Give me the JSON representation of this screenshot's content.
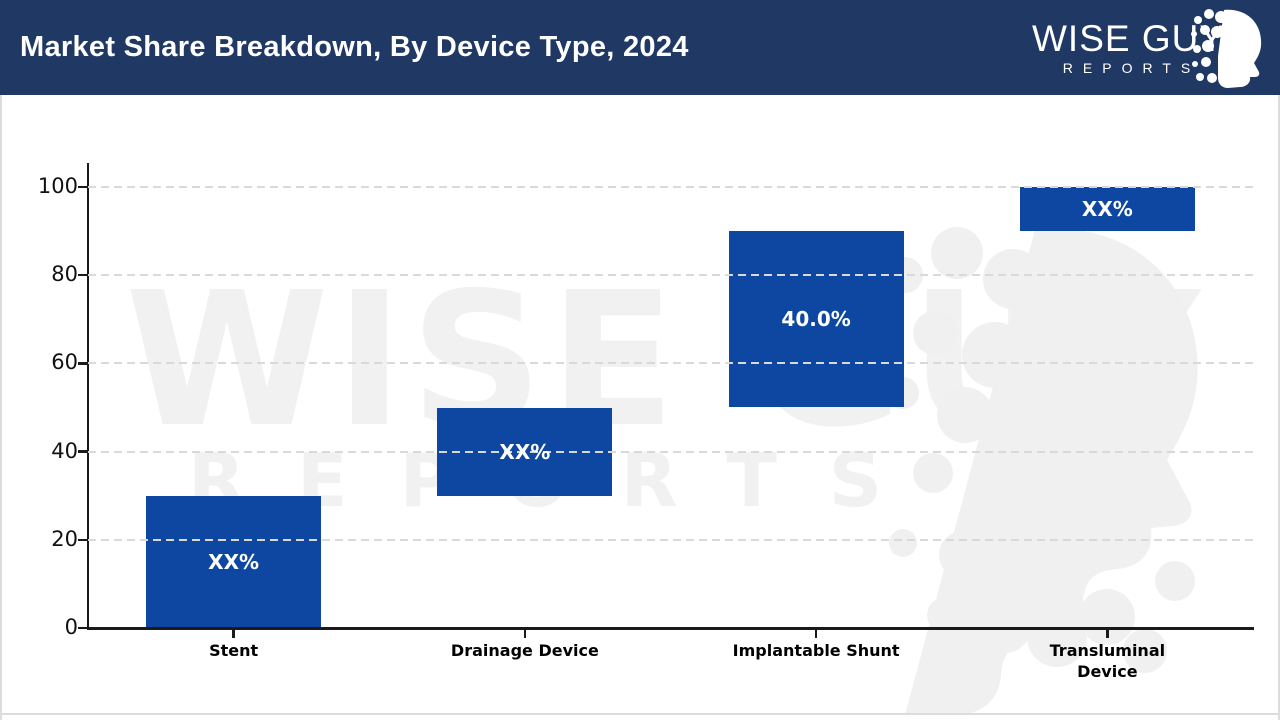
{
  "header": {
    "title": "Market Share Breakdown, By Device Type, 2024",
    "logo": {
      "line1": "WISE GUY",
      "line2": "REPORTS"
    },
    "bg_color": "#203864"
  },
  "watermark": {
    "line1": "WISE GUY",
    "line2": "REPORTS"
  },
  "colors": {
    "header_bg": "#203864",
    "bar": "#0d47a1",
    "grid": "#d9d9d9",
    "axis": "#1a1a1a",
    "bar_label": "#ffffff",
    "tick_label": "#111111",
    "watermark": "#f1f1f1"
  },
  "chart_data": {
    "type": "bar",
    "variant": "floating-segment waterfall (cumulative market share)",
    "title": "Market Share Breakdown, By Device Type, 2024",
    "categories": [
      "Stent",
      "Drainage Device",
      "Implantable Shunt",
      "Transluminal Device"
    ],
    "bars": [
      {
        "category": "Stent",
        "start": 0,
        "end": 30,
        "label": "XX%"
      },
      {
        "category": "Drainage Device",
        "start": 30,
        "end": 50,
        "label": "XX%"
      },
      {
        "category": "Implantable Shunt",
        "start": 50,
        "end": 90,
        "label": "40.0%"
      },
      {
        "category": "Transluminal Device",
        "start": 90,
        "end": 100,
        "label": "XX%"
      }
    ],
    "xlabel": "",
    "ylabel": "",
    "ylim": [
      0,
      100
    ],
    "yticks": [
      0,
      20,
      40,
      60,
      80,
      100
    ],
    "grid": "horizontal dashed",
    "legend": "none",
    "bar_color": "#0d47a1"
  }
}
